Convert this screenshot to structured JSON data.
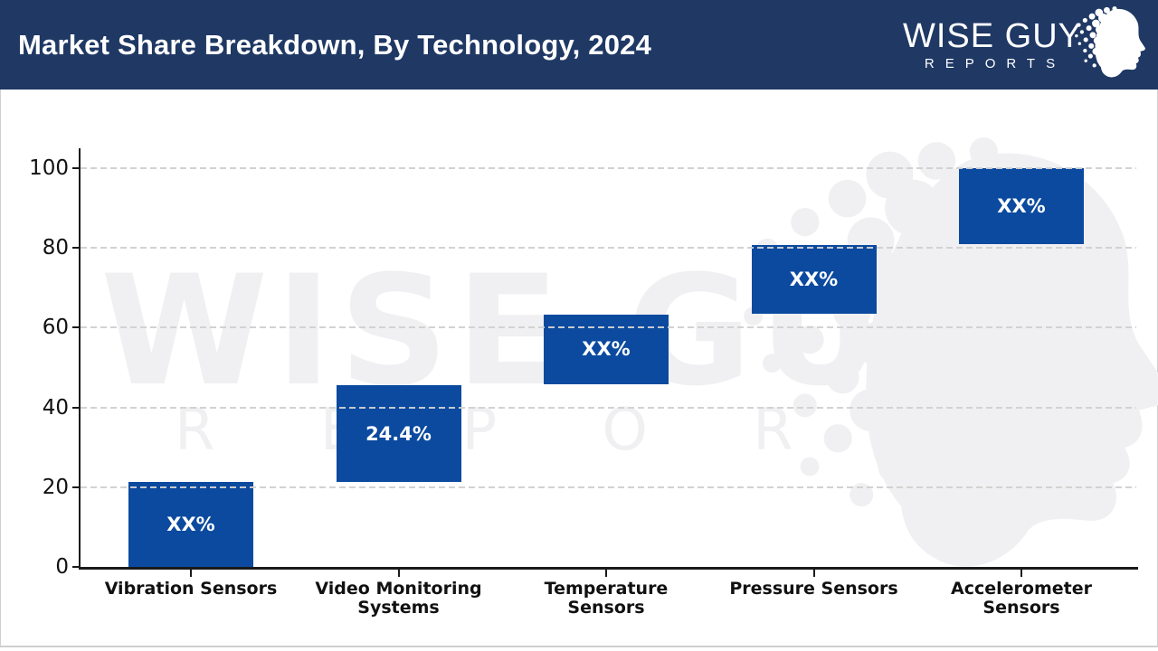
{
  "header": {
    "title": "Market Share Breakdown, By Technology, 2024",
    "bg_color": "#1f3864",
    "logo": {
      "line1": "WISE GUY",
      "line2": "REPORTS"
    }
  },
  "watermark": {
    "line1": "WISE GUY",
    "line2": "R E P O R T S"
  },
  "chart_data": {
    "type": "bar",
    "variant": "waterfall",
    "title": "Market Share Breakdown, By Technology, 2024",
    "categories": [
      "Vibration Sensors",
      "Video Monitoring Systems",
      "Temperature Sensors",
      "Pressure Sensors",
      "Accelerometer Sensors"
    ],
    "bars": [
      {
        "start": 0,
        "end": 21.3,
        "label": "XX%"
      },
      {
        "start": 21.2,
        "end": 45.6,
        "label": "24.4%"
      },
      {
        "start": 45.8,
        "end": 63.3,
        "label": "XX%"
      },
      {
        "start": 63.5,
        "end": 80.7,
        "label": "XX%"
      },
      {
        "start": 81.0,
        "end": 100.0,
        "label": "XX%"
      }
    ],
    "xtick_lines": [
      [
        "Vibration Sensors"
      ],
      [
        "Video Monitoring",
        "Systems"
      ],
      [
        "Temperature",
        "Sensors"
      ],
      [
        "Pressure Sensors"
      ],
      [
        "Accelerometer",
        "Sensors"
      ]
    ],
    "ylim": [
      0,
      100
    ],
    "yticks": [
      0,
      20,
      40,
      60,
      80,
      100
    ],
    "grid": "horizontal-dashed",
    "legend": "none",
    "bar_color": "#0b4a9f",
    "bar_label_color": "#ffffff",
    "axis_color": "#1a1a1a",
    "grid_color": "#d0d0d0"
  }
}
